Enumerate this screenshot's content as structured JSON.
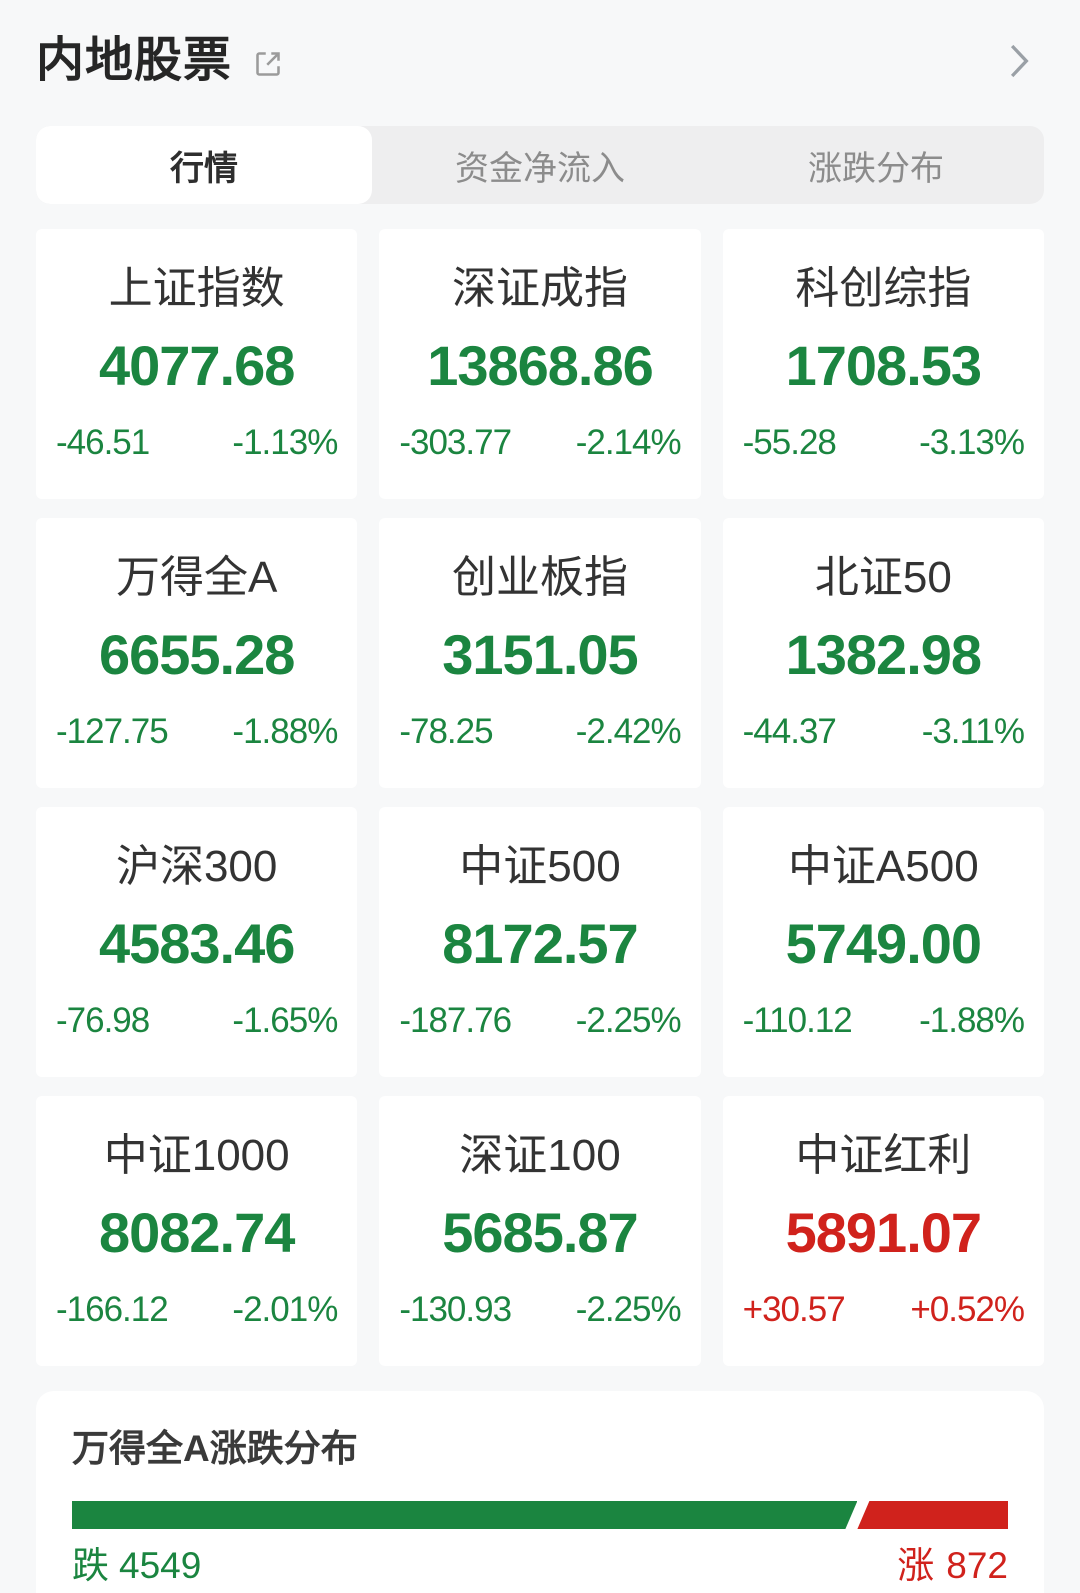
{
  "header": {
    "title": "内地股票"
  },
  "tabs": {
    "items": [
      {
        "key": "quotes",
        "label": "行情",
        "active": true
      },
      {
        "key": "net-inflow",
        "label": "资金净流入",
        "active": false
      },
      {
        "key": "distribution",
        "label": "涨跌分布",
        "active": false
      }
    ]
  },
  "indices": [
    {
      "name": "上证指数",
      "value": "4077.68",
      "change": "-46.51",
      "change_pct": "-1.13%",
      "direction": "down"
    },
    {
      "name": "深证成指",
      "value": "13868.86",
      "change": "-303.77",
      "change_pct": "-2.14%",
      "direction": "down"
    },
    {
      "name": "科创综指",
      "value": "1708.53",
      "change": "-55.28",
      "change_pct": "-3.13%",
      "direction": "down"
    },
    {
      "name": "万得全A",
      "value": "6655.28",
      "change": "-127.75",
      "change_pct": "-1.88%",
      "direction": "down"
    },
    {
      "name": "创业板指",
      "value": "3151.05",
      "change": "-78.25",
      "change_pct": "-2.42%",
      "direction": "down"
    },
    {
      "name": "北证50",
      "value": "1382.98",
      "change": "-44.37",
      "change_pct": "-3.11%",
      "direction": "down"
    },
    {
      "name": "沪深300",
      "value": "4583.46",
      "change": "-76.98",
      "change_pct": "-1.65%",
      "direction": "down"
    },
    {
      "name": "中证500",
      "value": "8172.57",
      "change": "-187.76",
      "change_pct": "-2.25%",
      "direction": "down"
    },
    {
      "name": "中证A500",
      "value": "5749.00",
      "change": "-110.12",
      "change_pct": "-1.88%",
      "direction": "down"
    },
    {
      "name": "中证1000",
      "value": "8082.74",
      "change": "-166.12",
      "change_pct": "-2.01%",
      "direction": "down"
    },
    {
      "name": "深证100",
      "value": "5685.87",
      "change": "-130.93",
      "change_pct": "-2.25%",
      "direction": "down"
    },
    {
      "name": "中证红利",
      "value": "5891.07",
      "change": "+30.57",
      "change_pct": "+0.52%",
      "direction": "up"
    }
  ],
  "distribution": {
    "title": "万得全A涨跌分布",
    "down_label": "跌",
    "down_count": 4549,
    "up_label": "涨",
    "up_count": 872
  },
  "chart_data": {
    "type": "bar",
    "subtype": "horizontal-stacked-proportion",
    "title": "万得全A涨跌分布",
    "categories": [
      "跌 (decliners)",
      "涨 (advancers)"
    ],
    "values": [
      4549,
      872
    ],
    "colors": [
      "#1b8540",
      "#d0221c"
    ],
    "legend_position": "below-bar-ends"
  },
  "colors": {
    "page_bg": "#f7f8f9",
    "tabbar_bg": "#eeeeef",
    "card_bg": "#ffffff",
    "down_green": "#1b8540",
    "up_red": "#d0221c",
    "text_primary": "#2b2b2b",
    "text_inactive": "#8c8c8c",
    "icon_gray": "#9b9b9b"
  }
}
